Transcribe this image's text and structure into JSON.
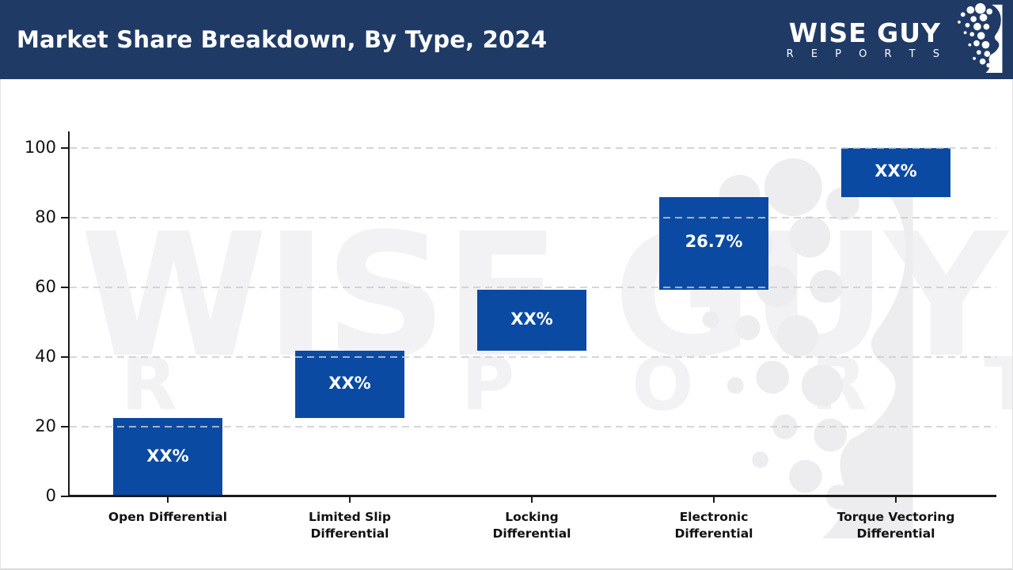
{
  "header": {
    "title": "Market Share Breakdown, By Type, 2024",
    "bg_color": "#203A66",
    "logo": {
      "wordmark": "WISE GUY",
      "subtitle": "R E P O R T S"
    }
  },
  "watermark": {
    "wordmark": "WISE GUY",
    "subtitle": "R E P O R T S"
  },
  "chart_data": {
    "type": "bar",
    "subtype": "waterfall-floating-bars",
    "title": "Market Share Breakdown, By Type, 2024",
    "categories": [
      "Open Differential",
      "Limited Slip\nDifferential",
      "Locking\nDifferential",
      "Electronic\nDifferential",
      "Torque Vectoring\nDifferential"
    ],
    "segments": [
      {
        "start": 0,
        "end": 22.5,
        "label": "XX%"
      },
      {
        "start": 22.5,
        "end": 41.8,
        "label": "XX%"
      },
      {
        "start": 41.8,
        "end": 59.3,
        "label": "XX%"
      },
      {
        "start": 59.3,
        "end": 86.0,
        "label": "26.7%"
      },
      {
        "start": 86.0,
        "end": 100,
        "label": "XX%"
      }
    ],
    "xlabel": "",
    "ylabel": "",
    "ylim": [
      0,
      100
    ],
    "yticks": [
      0,
      20,
      40,
      60,
      80,
      100
    ],
    "bar_color": "#0B4AA2",
    "axis_color": "#1a1a1a",
    "grid": true,
    "grid_style": "dashed"
  }
}
